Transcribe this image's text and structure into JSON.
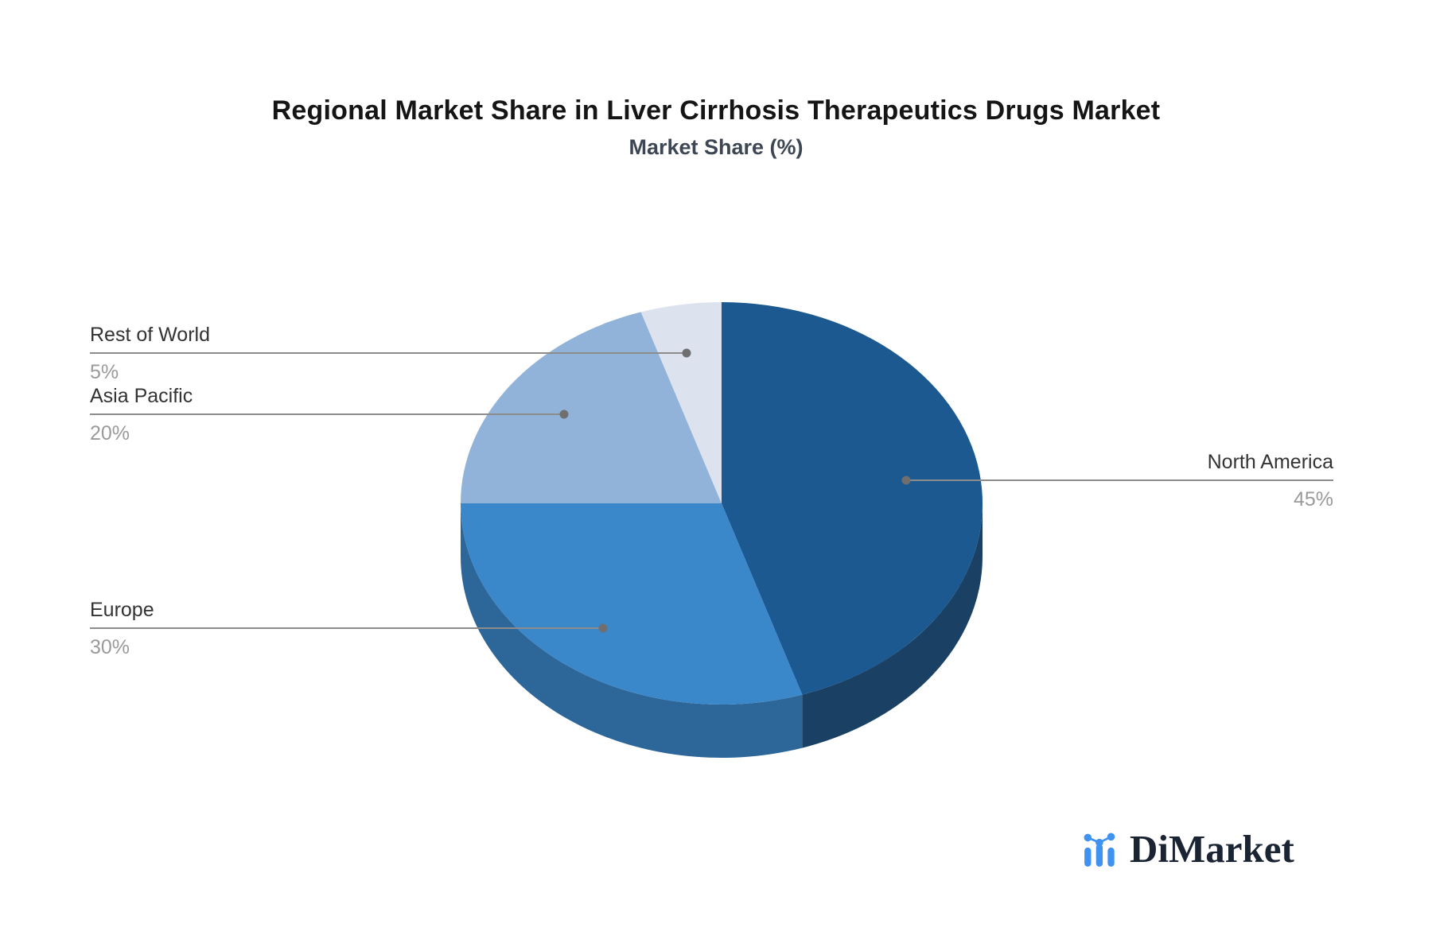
{
  "header": {
    "title": "Regional Market Share in Liver Cirrhosis Therapeutics Drugs Market",
    "subtitle": "Market Share (%)"
  },
  "chart_data": {
    "type": "pie",
    "title": "Regional Market Share in Liver Cirrhosis Therapeutics Drugs Market",
    "subtitle": "Market Share (%)",
    "unit": "%",
    "effect": "3d",
    "start_angle_deg": 0,
    "direction": "clockwise",
    "legend_position": "none",
    "label_style": "callout-leader-lines",
    "categories": [
      "North America",
      "Europe",
      "Asia Pacific",
      "Rest of World"
    ],
    "values": [
      45,
      30,
      20,
      5
    ],
    "series": [
      {
        "label": "North America",
        "value": 45,
        "display": "45%",
        "color": "#1c5990",
        "side_color": "#1a4063"
      },
      {
        "label": "Europe",
        "value": 30,
        "display": "30%",
        "color": "#3a87c9",
        "side_color": "#2d6699"
      },
      {
        "label": "Asia Pacific",
        "value": 20,
        "display": "20%",
        "color": "#91b3d9",
        "side_color": "#7797b8"
      },
      {
        "label": "Rest of World",
        "value": 5,
        "display": "5%",
        "color": "#dde3ee",
        "side_color": "#b8c2d2"
      }
    ],
    "leader_line_color": "#8c8c8c",
    "leader_dot_color": "#6f6f70",
    "label_text_color": "#333333",
    "value_text_color": "#9a9a9a"
  },
  "brand": {
    "name": "DiMarket",
    "icon": "bar-line-chart-logo-icon",
    "text_color": "#1b2433",
    "icon_color": "#3f92f0"
  }
}
